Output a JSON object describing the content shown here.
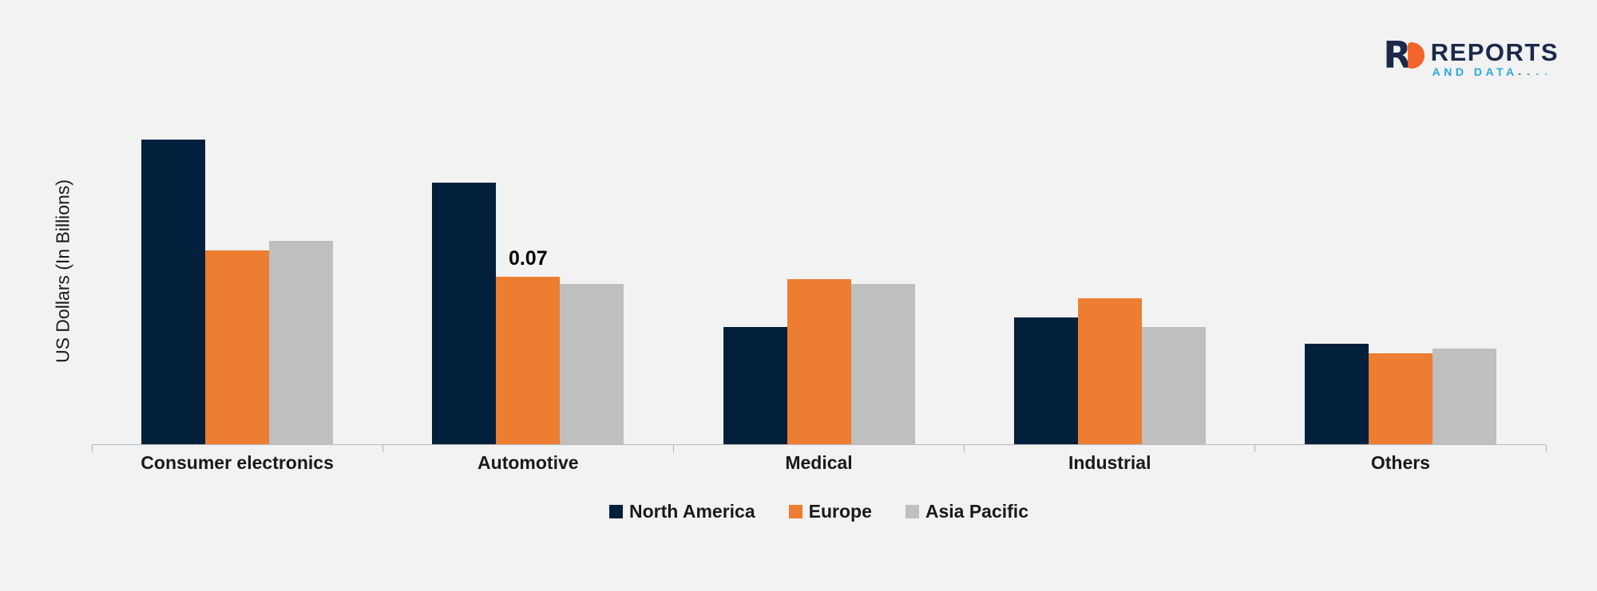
{
  "background": "#F2F2F2",
  "logo": {
    "mark_letter": "R",
    "reports": "REPORTS",
    "and_data": "AND DATA",
    "dots": "....",
    "navy": "#1B2A4B",
    "orange": "#F4632A",
    "blue": "#29A8E0"
  },
  "chart_data": {
    "type": "bar",
    "title": "",
    "xlabel": "",
    "ylabel": "US Dollars (In Billions)",
    "ylim": [
      0,
      0.14
    ],
    "grid": false,
    "legend_position": "bottom",
    "categories": [
      "Consumer electronics",
      "Automotive",
      "Medical",
      "Industrial",
      "Others"
    ],
    "series": [
      {
        "name": "North America",
        "color": "#02203C",
        "values": [
          0.127,
          0.109,
          0.049,
          0.053,
          0.042
        ]
      },
      {
        "name": "Europe",
        "color": "#ED7D31",
        "values": [
          0.081,
          0.07,
          0.069,
          0.061,
          0.038
        ]
      },
      {
        "name": "Asia Pacific",
        "color": "#BFBFBF",
        "values": [
          0.085,
          0.067,
          0.067,
          0.049,
          0.04
        ]
      }
    ],
    "data_labels": [
      {
        "category_index": 1,
        "series_index": 1,
        "text": "0.07"
      }
    ],
    "axis_color": "#BDBDBD"
  }
}
